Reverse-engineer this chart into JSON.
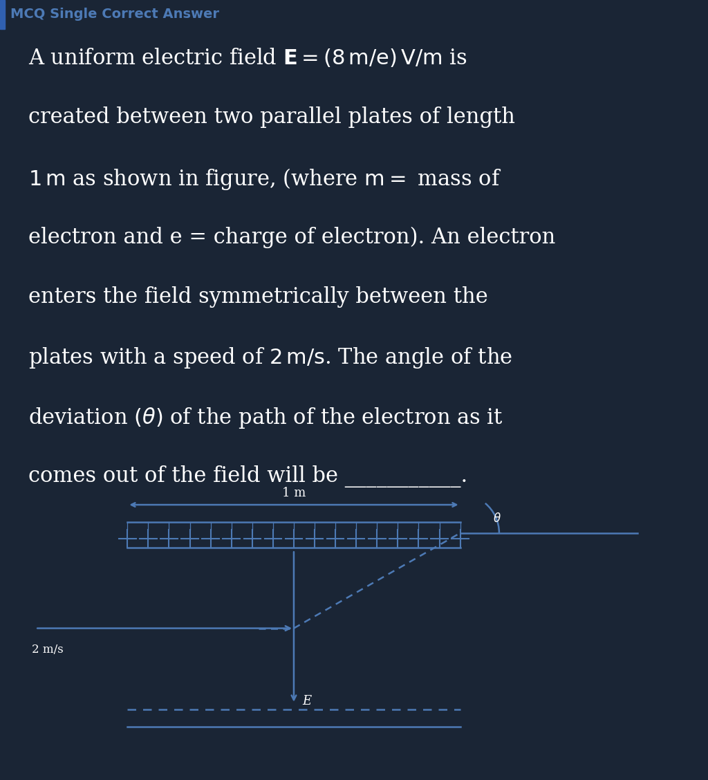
{
  "bg_color": "#1a2535",
  "header_bg": "#2c3a4e",
  "text_color": "#ffffff",
  "blue": "#4d7ab5",
  "title_text": "MCQ Single Correct Answer",
  "title_color": "#4d7ab5",
  "accent_color": "#3060b0",
  "fig_width": 10.24,
  "fig_height": 11.28,
  "dpi": 100,
  "line_texts": [
    "A uniform electric field $\\mathbf{E} = (8\\,\\mathrm{m/e})\\,\\mathrm{V/m}$ is",
    "created between two parallel plates of length",
    "$1\\,\\mathrm{m}$ as shown in figure, (where $\\mathrm{m} =$ mass of",
    "electron and e = charge of electron). An electron",
    "enters the field symmetrically between the",
    "plates with a speed of $2\\,\\mathrm{m/s}$. The angle of the",
    "deviation $(\\theta)$ of the path of the electron as it",
    "comes out of the field will be ___________."
  ]
}
